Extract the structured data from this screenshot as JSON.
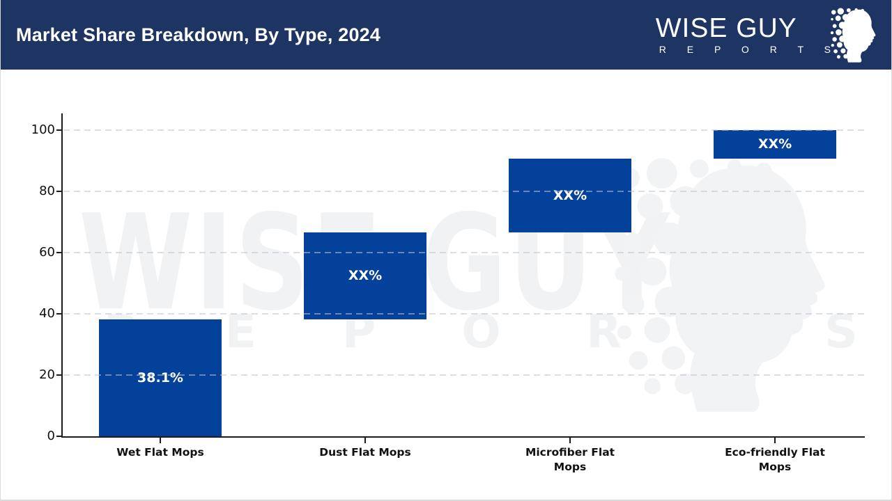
{
  "header": {
    "title": "Market Share Breakdown, By Type, 2024",
    "logo": {
      "line1": "WISE GUY",
      "line2": "R E P O R T S",
      "face_icon": "dotted-head-profile-icon"
    }
  },
  "watermark": {
    "line1": "WISE GUY",
    "line2": "R E P O R T S",
    "face_icon": "dotted-head-profile-icon"
  },
  "colors": {
    "header_bg": "#1e3563",
    "bar": "#04419a",
    "bar_label": "#ffffff",
    "axis": "#1c1c1c",
    "gridline": "#d9dde3",
    "watermark": "#f1f2f4"
  },
  "chart_data": {
    "type": "bar",
    "subtype": "waterfall",
    "title": "Market Share Breakdown, By Type, 2024",
    "xlabel": "",
    "ylabel": "",
    "ylim": [
      0,
      100
    ],
    "yticks": [
      0,
      20,
      40,
      60,
      80,
      100
    ],
    "grid": "horizontal dashed, drawn over bars",
    "legend": "none",
    "categories": [
      "Wet Flat Mops",
      "Dust Flat Mops",
      "Microfiber Flat Mops",
      "Eco-friendly Flat Mops"
    ],
    "segments": [
      {
        "category": "Wet Flat Mops",
        "start": 0,
        "end": 38.1,
        "size": 38.1,
        "label": "38.1%"
      },
      {
        "category": "Dust Flat Mops",
        "start": 38.1,
        "end": 66.7,
        "size": 28.6,
        "label": "XX%"
      },
      {
        "category": "Microfiber Flat Mops",
        "start": 66.7,
        "end": 90.7,
        "size": 24.0,
        "label": "XX%"
      },
      {
        "category": "Eco-friendly Flat Mops",
        "start": 90.7,
        "end": 100.0,
        "size": 9.3,
        "label": "XX%"
      }
    ]
  }
}
